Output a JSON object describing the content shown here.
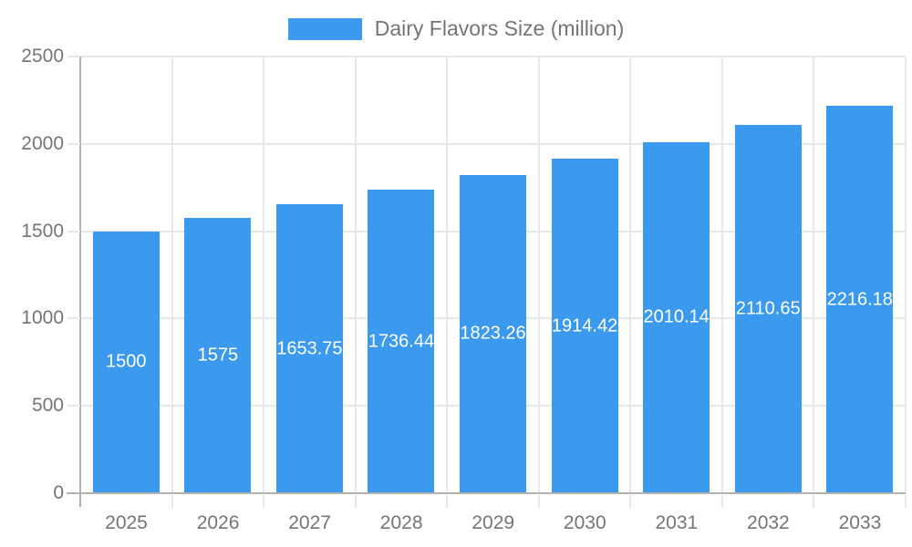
{
  "chart_data": {
    "type": "bar",
    "title": "",
    "categories": [
      "2025",
      "2026",
      "2027",
      "2028",
      "2029",
      "2030",
      "2031",
      "2032",
      "2033"
    ],
    "series": [
      {
        "name": "Dairy Flavors Size (million)",
        "values": [
          1500,
          1575,
          1653.75,
          1736.44,
          1823.26,
          1914.42,
          2010.14,
          2110.65,
          2216.18
        ],
        "color": "#3b99ee"
      }
    ],
    "value_labels": [
      "1500",
      "1575",
      "1653.75",
      "1736.44",
      "1823.26",
      "1914.42",
      "2010.14",
      "2110.65",
      "2216.18"
    ],
    "xlabel": "",
    "ylabel": "",
    "ylim": [
      0,
      2500
    ],
    "ytick_labels": [
      "0",
      "500",
      "1000",
      "1500",
      "2000",
      "2500"
    ],
    "ytick_values": [
      0,
      500,
      1000,
      1500,
      2000,
      2500
    ],
    "grid": true,
    "legend_position": "top"
  },
  "colors": {
    "bar": "#3b99ee",
    "grid": "#e8e8e8",
    "axis": "#b1b1b1",
    "axis_text": "#757575",
    "legend_text": "#757575",
    "value_label_text": "#ffffff",
    "background": "#ffffff"
  }
}
